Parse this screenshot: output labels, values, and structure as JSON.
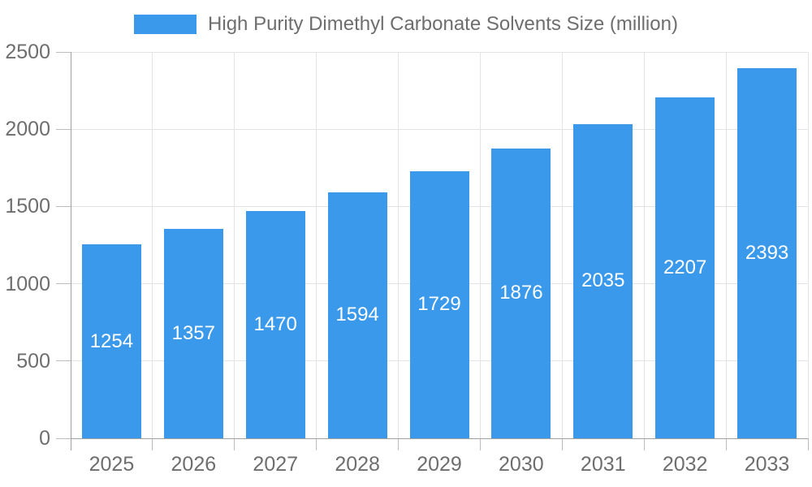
{
  "legend": {
    "label": "High Purity Dimethyl Carbonate Solvents Size (million)"
  },
  "chart_data": {
    "type": "bar",
    "title": "High Purity Dimethyl Carbonate Solvents Size (million)",
    "categories": [
      "2025",
      "2026",
      "2027",
      "2028",
      "2029",
      "2030",
      "2031",
      "2032",
      "2033"
    ],
    "values": [
      1254,
      1357,
      1470,
      1594,
      1729,
      1876,
      2035,
      2207,
      2393
    ],
    "xlabel": "",
    "ylabel": "",
    "ylim": [
      0,
      2500
    ],
    "yticks": [
      0,
      500,
      1000,
      1500,
      2000,
      2500
    ],
    "grid": true,
    "legend_position": "top",
    "value_label_position": "inside-center"
  },
  "colors": {
    "bar": "#3b99eb",
    "grid": "#e3e3e3",
    "axis": "#a0a0a0",
    "tick": "#bdbdbd",
    "label_text": "#6e6e6e",
    "value_text": "#ffffff",
    "background": "#ffffff"
  }
}
